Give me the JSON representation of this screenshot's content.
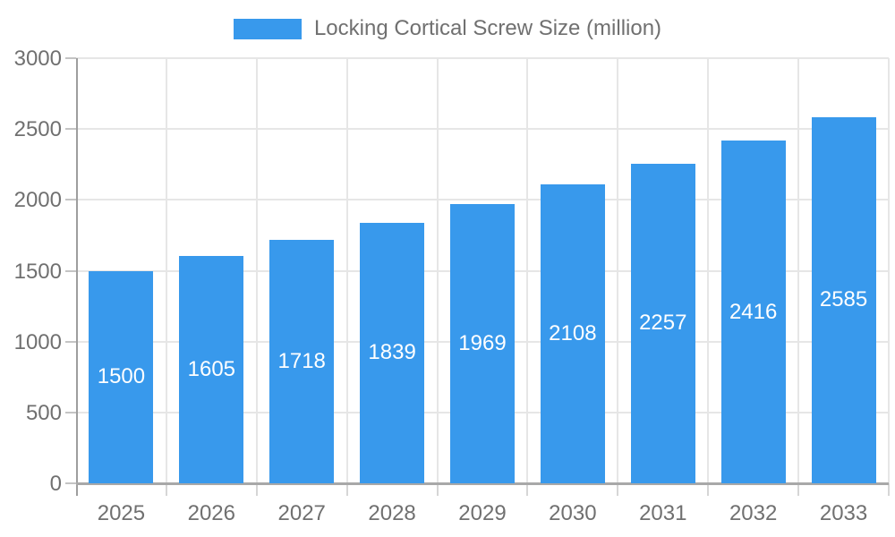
{
  "chart_data": {
    "type": "bar",
    "title": "Locking Cortical Screw Size (million)",
    "categories": [
      "2025",
      "2026",
      "2027",
      "2028",
      "2029",
      "2030",
      "2031",
      "2032",
      "2033"
    ],
    "values": [
      1500,
      1605,
      1718,
      1839,
      1969,
      2108,
      2257,
      2416,
      2585
    ],
    "series": [
      {
        "name": "Locking Cortical Screw Size (million)",
        "values": [
          1500,
          1605,
          1718,
          1839,
          1969,
          2108,
          2257,
          2416,
          2585
        ]
      }
    ],
    "xlabel": "",
    "ylabel": "",
    "ylim": [
      0,
      3000
    ],
    "yticks": [
      0,
      500,
      1000,
      1500,
      2000,
      2500,
      3000
    ],
    "grid": true,
    "legend_position": "top-center",
    "bar_color": "#3899EC",
    "bar_label_color": "#ffffff",
    "axis_text_color": "#707070",
    "grid_color": "#e6e6e6",
    "axis_line_color": "#9e9e9e"
  }
}
